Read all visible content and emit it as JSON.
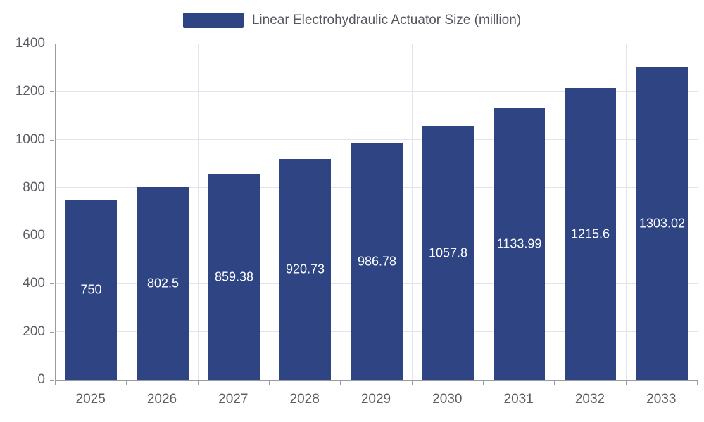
{
  "legend": {
    "label": "Linear Electrohydraulic Actuator Size (million)"
  },
  "chart_data": {
    "type": "bar",
    "title": "Linear Electrohydraulic Actuator Size (million)",
    "categories": [
      "2025",
      "2026",
      "2027",
      "2028",
      "2029",
      "2030",
      "2031",
      "2032",
      "2033"
    ],
    "values": [
      750,
      802.5,
      859.38,
      920.73,
      986.78,
      1057.8,
      1133.99,
      1215.6,
      1303.02
    ],
    "value_labels": [
      "750",
      "802.5",
      "859.38",
      "920.73",
      "986.78",
      "1057.8",
      "1133.99",
      "1215.6",
      "1303.02"
    ],
    "xlabel": "",
    "ylabel": "",
    "ylim": [
      0,
      1400
    ],
    "ytick_step": 200,
    "grid": true,
    "legend_position": "top",
    "bar_color": "#2f4583",
    "value_label_color": "#ffffff"
  }
}
